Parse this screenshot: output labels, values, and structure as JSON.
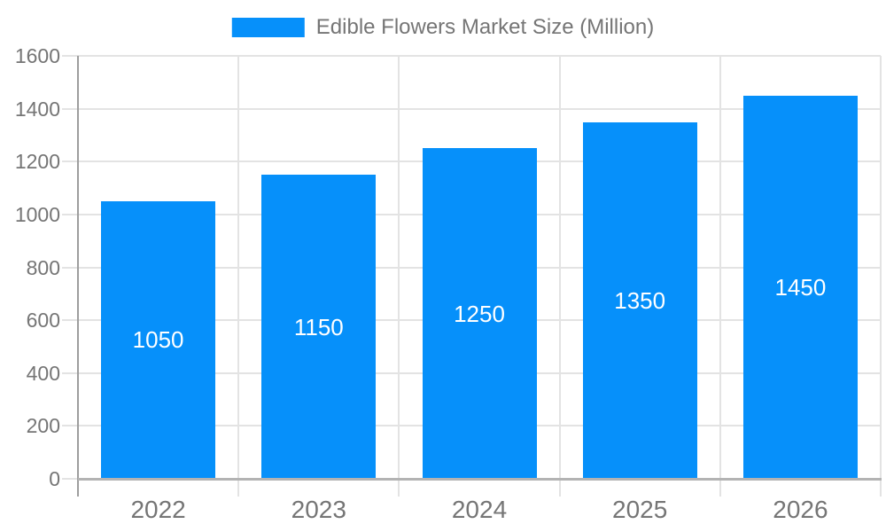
{
  "chart_data": {
    "type": "bar",
    "title": "Edible Flowers Market Size (Million)",
    "legend": {
      "position": "top",
      "label": "Edible Flowers Market Size (Million)"
    },
    "categories": [
      "2022",
      "2023",
      "2024",
      "2025",
      "2026"
    ],
    "values": [
      1050,
      1150,
      1250,
      1350,
      1450
    ],
    "series": [
      {
        "name": "Edible Flowers Market Size (Million)",
        "values": [
          1050,
          1150,
          1250,
          1350,
          1450
        ]
      }
    ],
    "xlabel": "",
    "ylabel": "",
    "ylim": [
      0,
      1600
    ],
    "yticks": [
      0,
      200,
      400,
      600,
      800,
      1000,
      1200,
      1400,
      1600
    ],
    "grid": true,
    "value_labels_shown": true,
    "colors": {
      "bar": "#0690FA",
      "value_label": "#FFFFFF",
      "axis_text": "#757575",
      "gridline": "#E3E3E3",
      "axis_line": "#9E9E9E",
      "baseline": "#B3B3B3",
      "background": "#FFFFFF"
    }
  }
}
